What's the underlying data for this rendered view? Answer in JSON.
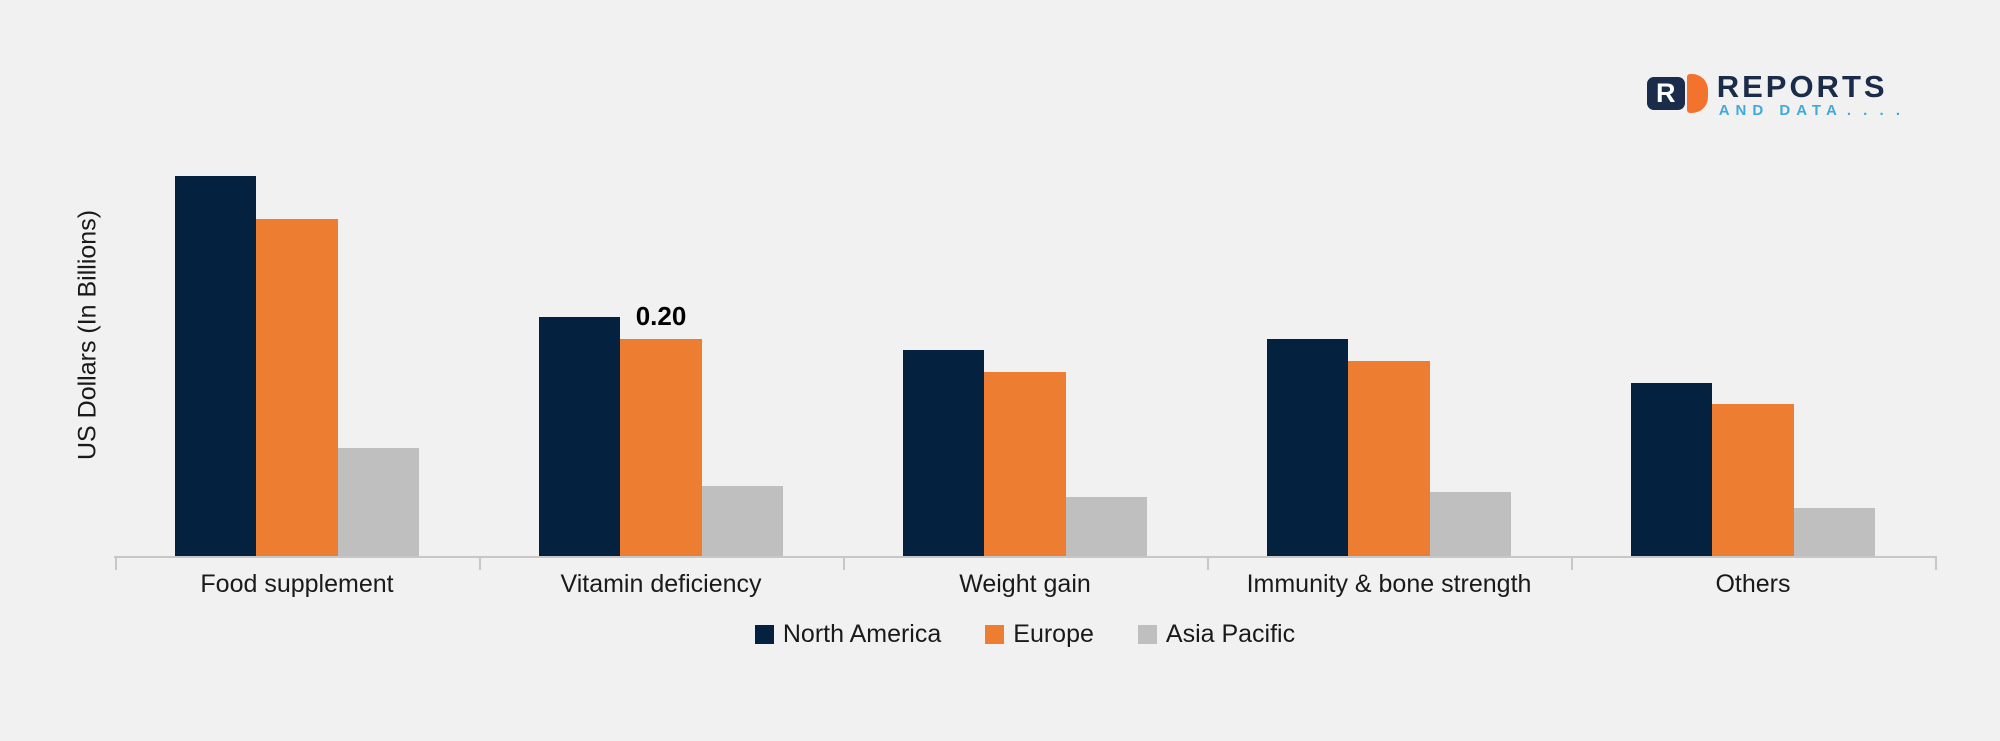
{
  "background": "#f1f1f2",
  "logo": {
    "mark_letter": "R",
    "line1": "REPORTS",
    "line2": "AND DATA",
    "dots": ". . . .",
    "navy": "#1b2b4a",
    "blue": "#3fa9dc",
    "orange": "#f4732c"
  },
  "chart_data": {
    "type": "bar",
    "title": "",
    "xlabel": "",
    "ylabel": "US Dollars (In Billions)",
    "categories": [
      "Food supplement",
      "Vitamin deficiency",
      "Weight gain",
      "Immunity & bone strength",
      "Others"
    ],
    "series": [
      {
        "name": "North America",
        "color": "#04213f",
        "values": [
          0.35,
          0.22,
          0.19,
          0.2,
          0.16
        ]
      },
      {
        "name": "Europe",
        "color": "#ed7d31",
        "values": [
          0.31,
          0.2,
          0.17,
          0.18,
          0.14
        ]
      },
      {
        "name": "Asia Pacific",
        "color": "#bfbfbf",
        "values": [
          0.1,
          0.065,
          0.055,
          0.06,
          0.045
        ]
      }
    ],
    "data_labels": [
      {
        "series": "Europe",
        "category": "Vitamin deficiency",
        "text": "0.20"
      }
    ],
    "ylim": [
      0,
      0.4
    ],
    "grid": false,
    "y_axis_ticks_visible": false,
    "legend_position": "bottom",
    "axis_color": "#c7c7c7"
  }
}
